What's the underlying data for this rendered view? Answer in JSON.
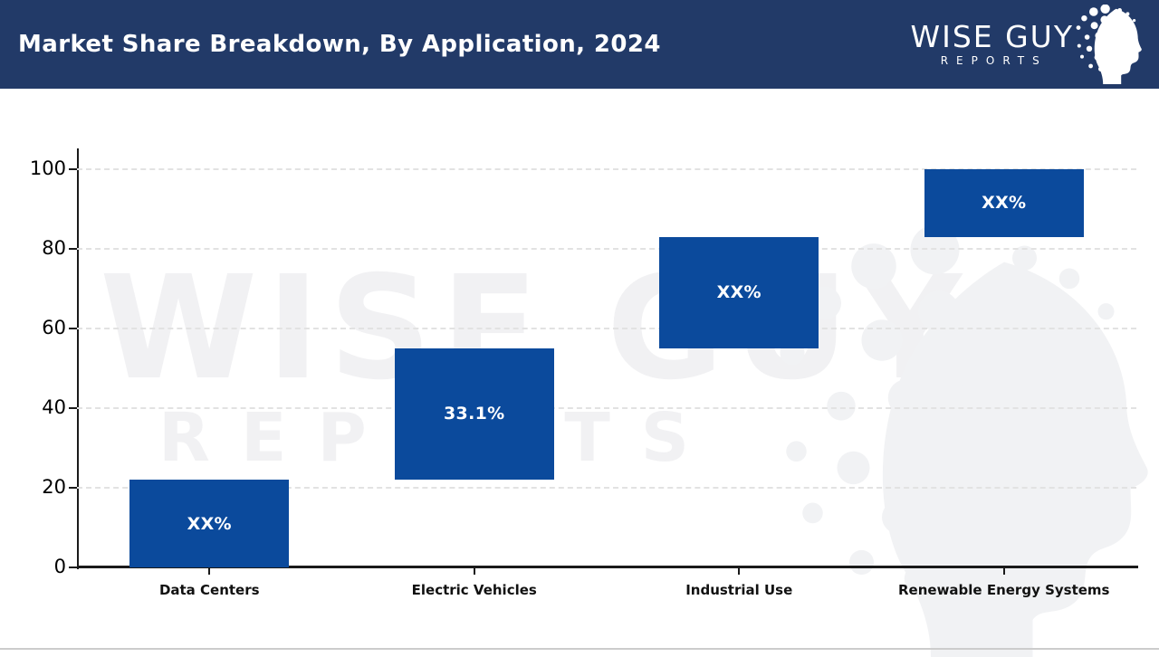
{
  "header": {
    "title": "Market Share Breakdown, By Application, 2024",
    "logo": {
      "line1": "WISE GUY",
      "line2": "REPORTS"
    }
  },
  "watermark": {
    "line1": "WISE GUY",
    "line2": "REPORTS"
  },
  "colors": {
    "header_bg": "#223A68",
    "bar": "#0B4A9C",
    "bar_label_text": "#FFFFFF",
    "gridline": "#E2E2E2",
    "axis": "#1A1A1A",
    "watermark": "#F1F1F3"
  },
  "chart_data": {
    "type": "bar",
    "subtype": "waterfall",
    "title": "Market Share Breakdown, By Application, 2024",
    "xlabel": "",
    "ylabel": "",
    "categories": [
      "Data Centers",
      "Electric Vehicles",
      "Industrial Use",
      "Renewable Energy Systems"
    ],
    "segments": [
      {
        "category": "Data Centers",
        "start": 0,
        "end": 22,
        "label": "XX%"
      },
      {
        "category": "Electric Vehicles",
        "start": 22,
        "end": 55.1,
        "label": "33.1%"
      },
      {
        "category": "Industrial Use",
        "start": 55.1,
        "end": 83,
        "label": "XX%"
      },
      {
        "category": "Renewable Energy Systems",
        "start": 83,
        "end": 100,
        "label": "XX%"
      }
    ],
    "y_ticks": [
      0,
      20,
      40,
      60,
      80,
      100
    ],
    "ylim": [
      0,
      104
    ],
    "grid": "horizontal-dashed",
    "legend": "none"
  }
}
